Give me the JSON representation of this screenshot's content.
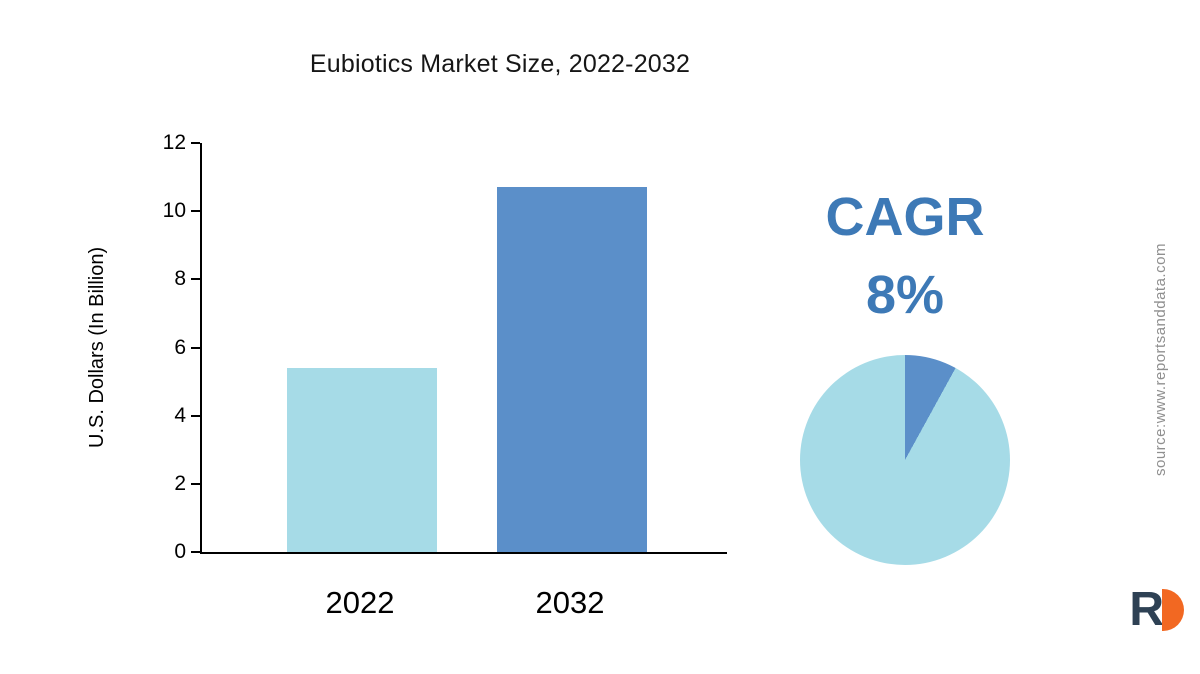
{
  "title": "Eubiotics Market  Size, 2022-2032",
  "cagr": {
    "label": "CAGR",
    "value": "8%"
  },
  "source_text": "source:www.reportsanddata.com",
  "logo": {
    "letter": "R",
    "accent_color": "#f26822",
    "text_color": "#2e4154"
  },
  "colors": {
    "cagr_text": "#3d79b6",
    "axis": "#000000"
  },
  "chart_data": [
    {
      "type": "bar",
      "title": "Eubiotics Market  Size, 2022-2032",
      "categories": [
        "2022",
        "2032"
      ],
      "values": [
        5.4,
        10.7
      ],
      "xlabel": "",
      "ylabel": "U.S. Dollars (In Billion)",
      "ylim": [
        0,
        12
      ],
      "yticks": [
        0,
        2,
        4,
        6,
        8,
        10,
        12
      ],
      "bar_colors": [
        "#a6dbe7",
        "#5b8fc9"
      ],
      "grid": false,
      "legend_position": "none"
    },
    {
      "type": "pie",
      "title": "CAGR 8%",
      "slices": [
        {
          "label": "CAGR",
          "value": 8,
          "color": "#5b8fc9"
        },
        {
          "label": "remainder",
          "value": 92,
          "color": "#a6dbe7"
        }
      ],
      "start_angle_deg": 0,
      "direction": "clockwise"
    }
  ]
}
